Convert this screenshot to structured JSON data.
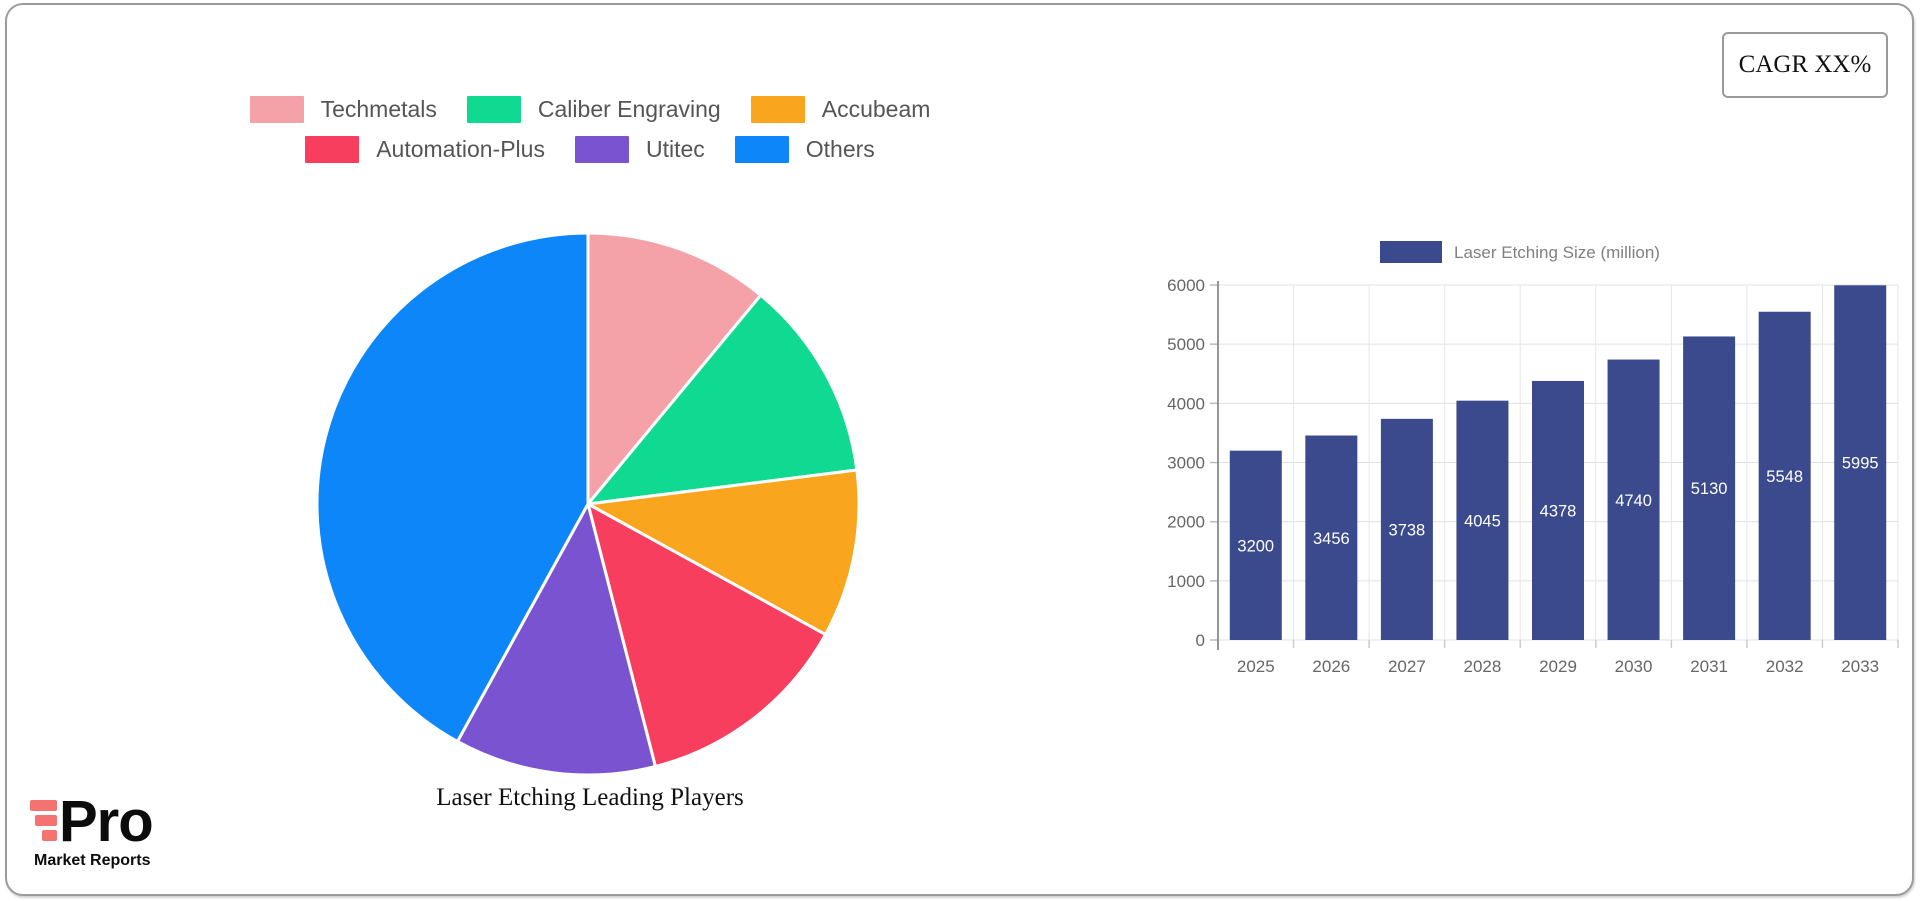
{
  "cagr_badge": {
    "label": "CAGR XX%"
  },
  "logo": {
    "brand": "Pro",
    "subtitle": "Market Reports",
    "bar_color": "#f4726f"
  },
  "card": {
    "border_color": "#9b9b9b",
    "background": "#ffffff"
  },
  "chart_data": [
    {
      "type": "pie",
      "title": "Laser Etching Leading Players",
      "labels": [
        "Techmetals",
        "Caliber Engraving",
        "Accubeam",
        "Automation-Plus",
        "Utitec",
        "Others"
      ],
      "values": [
        11,
        12,
        10,
        13,
        12,
        42
      ],
      "values_note": "share percent estimated from slice angles (no numeric labels shown)",
      "colors": [
        "#F4A2A8",
        "#10D992",
        "#F9A51D",
        "#F83E5E",
        "#7A54D0",
        "#0C86F8"
      ],
      "slice_border_color": "#FFFFFF",
      "legend_position": "top",
      "legend_text_color": "#555555"
    },
    {
      "type": "bar",
      "categories": [
        "2025",
        "2026",
        "2027",
        "2028",
        "2029",
        "2030",
        "2031",
        "2032",
        "2033"
      ],
      "series": [
        {
          "name": "Laser Etching Size (million)",
          "values": [
            3200,
            3456,
            3738,
            4045,
            4378,
            4740,
            5130,
            5548,
            5995
          ]
        }
      ],
      "ylim": [
        0,
        6000
      ],
      "yticks": [
        0,
        1000,
        2000,
        3000,
        4000,
        5000,
        6000
      ],
      "xlabel": "",
      "ylabel": "",
      "grid": true,
      "legend_position": "top",
      "bar_color": "#3A4A8C",
      "value_label_color": "#FFFFFF",
      "axis_text_color": "#666666",
      "gridline_color": "#E0E0E0"
    }
  ]
}
